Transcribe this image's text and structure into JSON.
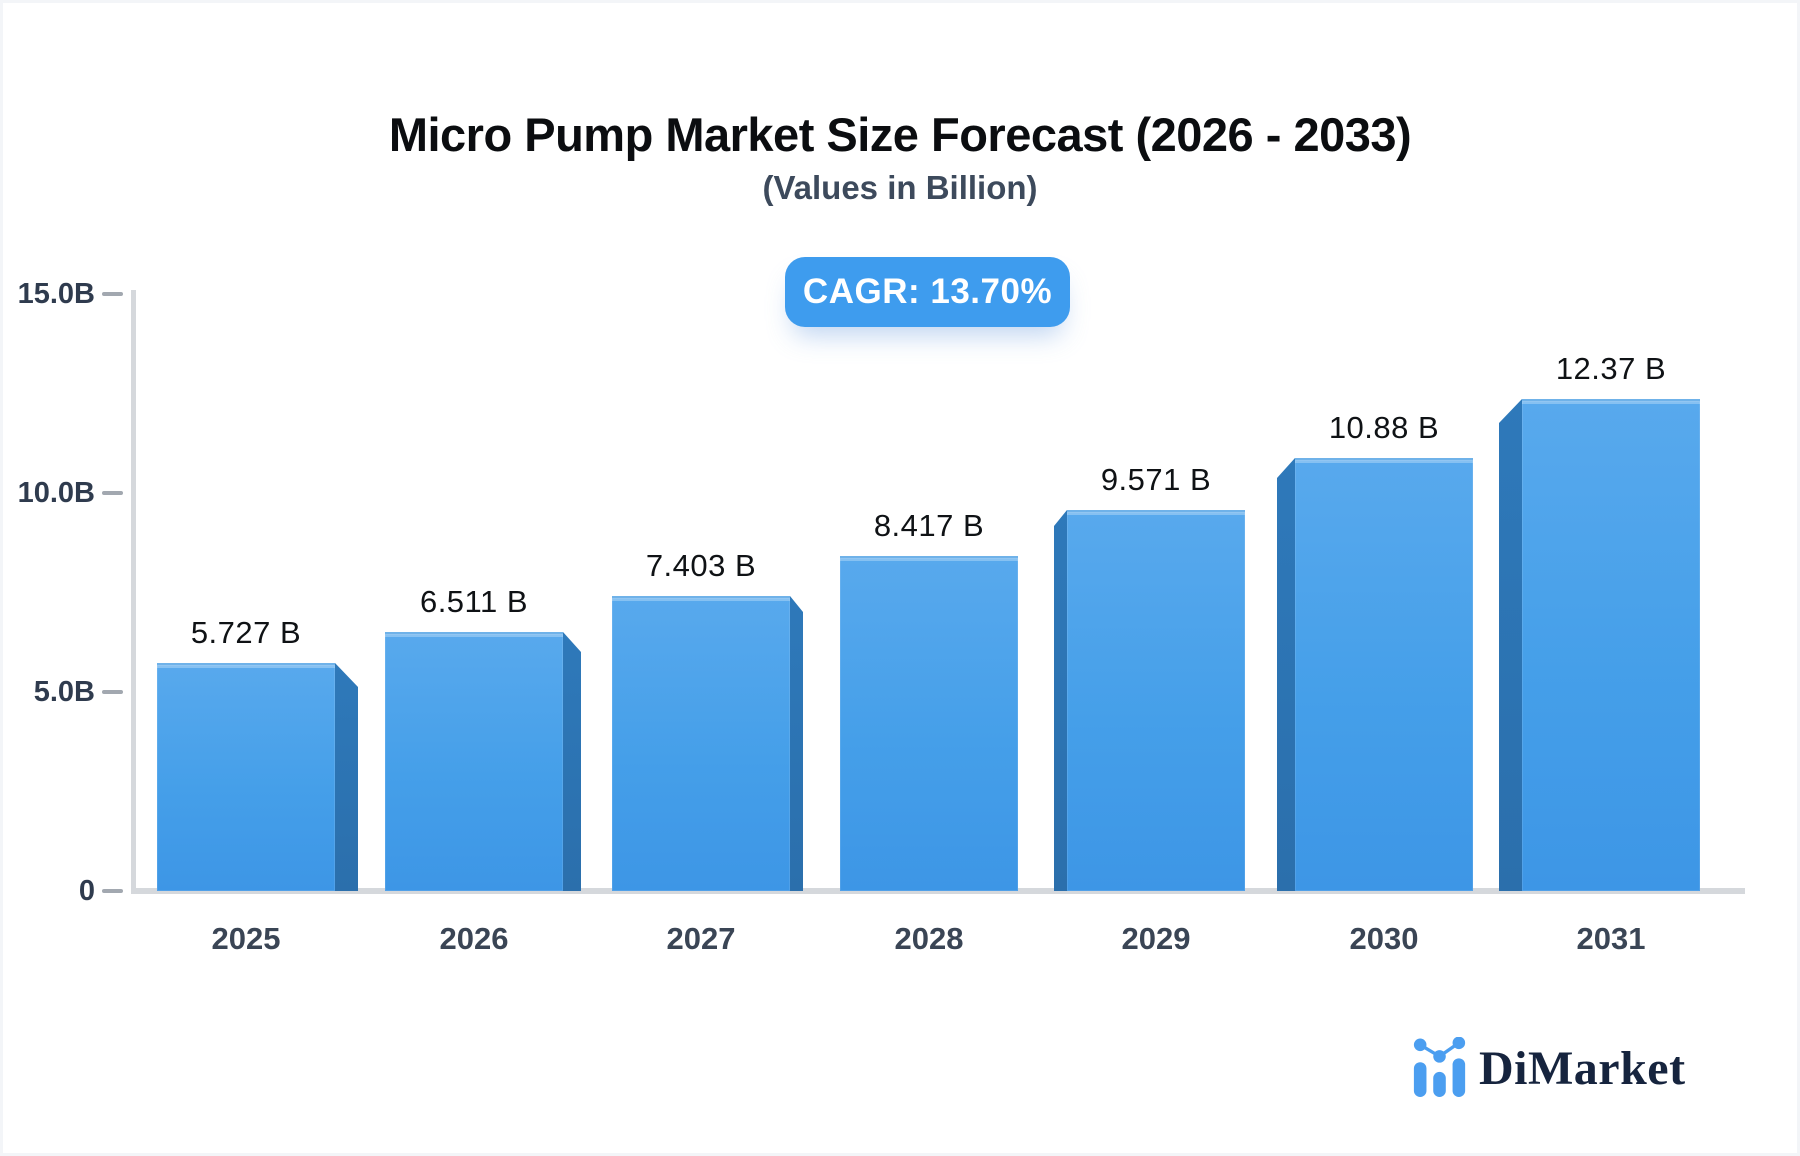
{
  "header": {
    "title": "Micro Pump Market Size Forecast (2026 - 2033)",
    "subtitle": "(Values in Billion)"
  },
  "badge": {
    "label": "CAGR: 13.70%",
    "background_color": "#3e9cee",
    "text_color": "#ffffff"
  },
  "chart_data": {
    "type": "bar",
    "title": "Micro Pump Market Size Forecast (2026 - 2033)",
    "subtitle": "(Values in Billion)",
    "categories": [
      "2025",
      "2026",
      "2027",
      "2028",
      "2029",
      "2030",
      "2031"
    ],
    "values": [
      5.727,
      6.511,
      7.403,
      8.417,
      9.571,
      10.88,
      12.37
    ],
    "value_labels": [
      "5.727 B",
      "6.511 B",
      "7.403 B",
      "8.417 B",
      "9.571 B",
      "10.88 B",
      "12.37 B"
    ],
    "xlabel": "",
    "ylabel": "",
    "ylim": [
      0,
      15
    ],
    "yticks": [
      {
        "label": "15.0B",
        "value": 15
      },
      {
        "label": "10.0B",
        "value": 10
      },
      {
        "label": "5.0B",
        "value": 5
      },
      {
        "label": "0",
        "value": 0
      }
    ],
    "grid": false,
    "legend": null,
    "bar_face_color_top": "#58a9ed",
    "bar_face_color_bottom": "#3d96e6",
    "bar_side_color": "#2e79ba",
    "style": "3d-perspective-bars"
  },
  "logo": {
    "text": "DiMarket",
    "icon": "bar-line-chart-icon",
    "icon_color": "#4b9ef0",
    "text_color": "#16243e"
  }
}
